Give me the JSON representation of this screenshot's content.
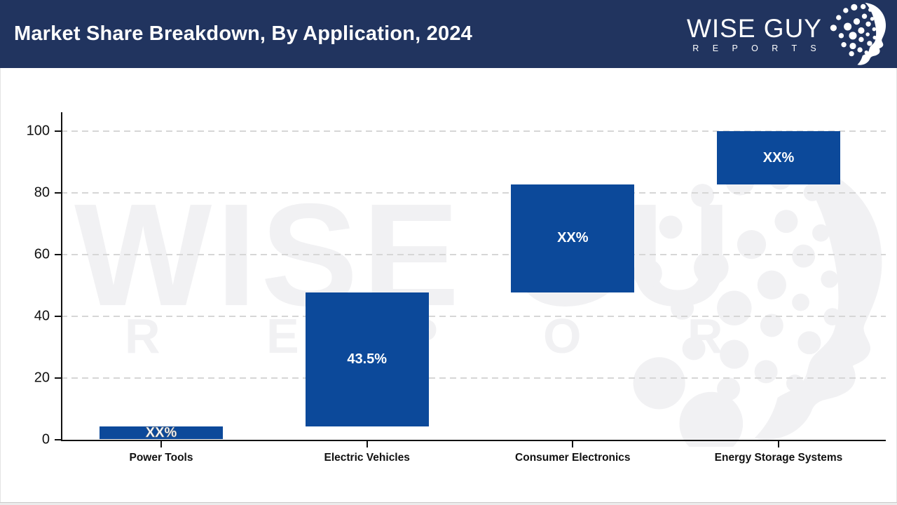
{
  "header": {
    "title": "Market Share Breakdown, By Application, 2024",
    "logo_line1": "WISE GUY",
    "logo_line2": "R E P O R T S"
  },
  "watermark": {
    "line1": "WISE GU",
    "line2": "R E P O R T S"
  },
  "colors": {
    "header_bg": "#21345F",
    "bar": "#0C499A",
    "bar_label": "#FFFFFF",
    "gridline": "#D6D6D6",
    "axis": "#111111",
    "tick_label": "#111111",
    "watermark": "#F1F1F3",
    "background": "#FFFFFF"
  },
  "chart_data": {
    "type": "bar",
    "subtype": "waterfall (each bar starts where previous ends)",
    "title": "Market Share Breakdown, By Application, 2024",
    "categories": [
      "Power Tools",
      "Electric Vehicles",
      "Consumer Electronics",
      "Energy Storage Systems"
    ],
    "bars": [
      {
        "category": "Power Tools",
        "start": 0,
        "end": 4.3,
        "label": "XX%"
      },
      {
        "category": "Electric Vehicles",
        "start": 4.3,
        "end": 47.8,
        "label": "43.5%",
        "value": 43.5
      },
      {
        "category": "Consumer Electronics",
        "start": 47.8,
        "end": 82.7,
        "label": "XX%"
      },
      {
        "category": "Energy Storage Systems",
        "start": 82.7,
        "end": 100,
        "label": "XX%"
      }
    ],
    "xlabel": "",
    "ylabel": "",
    "ylim": [
      0,
      100
    ],
    "yticks": [
      0,
      20,
      40,
      60,
      80,
      100
    ],
    "grid": "horizontal dashed gridlines at y ticks (no gridline at 0)",
    "legend": "none"
  }
}
